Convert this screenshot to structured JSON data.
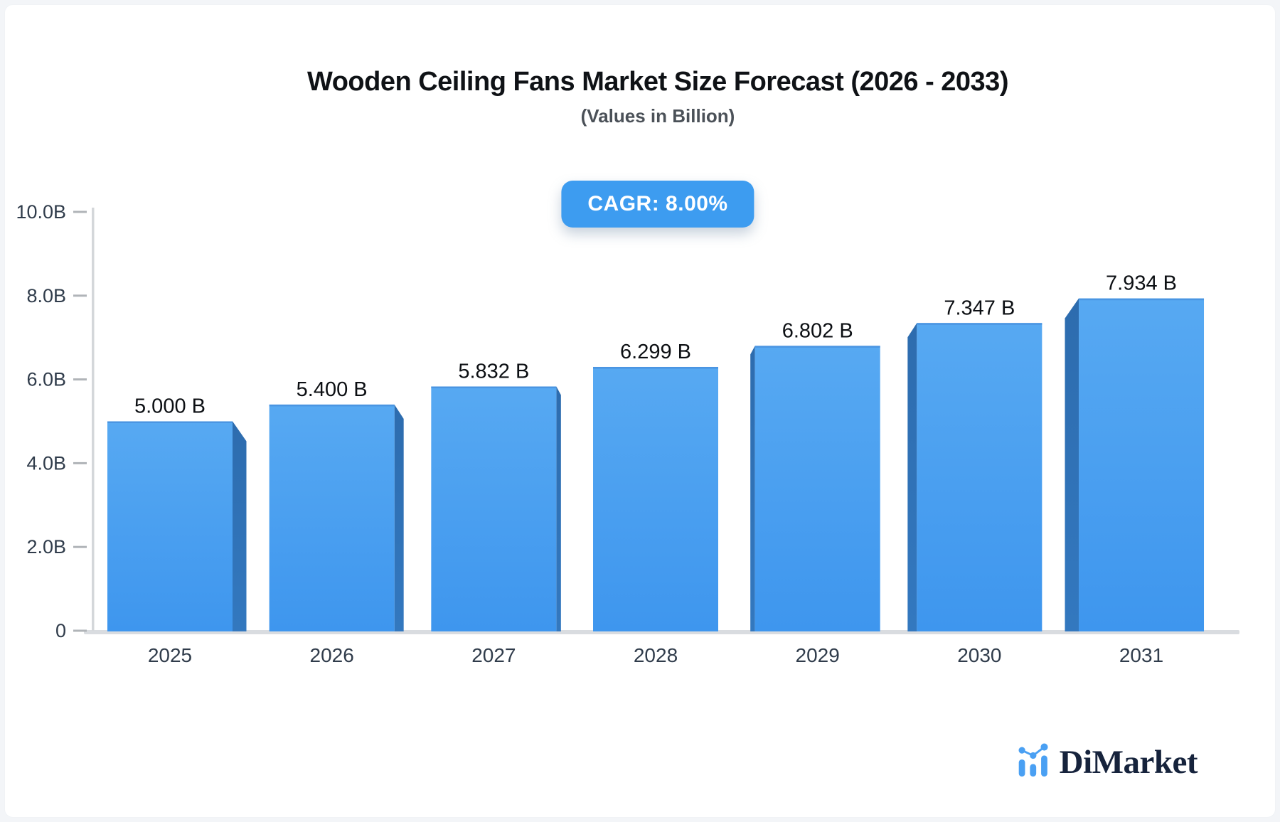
{
  "header": {
    "title": "Wooden Ceiling Fans Market Size Forecast (2026 - 2033)",
    "subtitle": "(Values in Billion)",
    "cagr_label": "CAGR: 8.00%"
  },
  "branding": {
    "name": "DiMarket",
    "logo_icon": "mini-bar-chart-icon",
    "brand_blue": "#4aa0f3",
    "brand_navy": "#16233c"
  },
  "colors": {
    "bar_top": "#57a9f2",
    "bar_bottom": "#3e96ee",
    "bar_top_edge": "#4a95e2",
    "bar_side_dark": "#2d6cae",
    "bar_side_light": "#3378bf",
    "badge_blue": "#3d9cf0",
    "axis_line": "#d4d7da",
    "baseline": "#d9dce0",
    "tick_mark": "#b0b4b8",
    "axis_label": "#303c4b",
    "value_label": "#0c0f13"
  },
  "chart_data": {
    "type": "bar",
    "title": "Wooden Ceiling Fans Market Size Forecast (2026 - 2033)",
    "subtitle": "(Values in Billion)",
    "annotation": "CAGR: 8.00%",
    "unit": "Billion",
    "categories": [
      "2025",
      "2026",
      "2027",
      "2028",
      "2029",
      "2030",
      "2031"
    ],
    "values": [
      5.0,
      5.4,
      5.832,
      6.299,
      6.802,
      7.347,
      7.934
    ],
    "value_labels": [
      "5.000 B",
      "5.400 B",
      "5.832 B",
      "6.299 B",
      "6.802 B",
      "7.347 B",
      "7.934 B"
    ],
    "xlabel": "",
    "ylabel": "",
    "ylim": [
      0,
      10
    ],
    "ytick_labels": [
      "0",
      "2.0B",
      "4.0B",
      "6.0B",
      "8.0B",
      "10.0B"
    ],
    "grid": "off",
    "legend": "none",
    "style": "3d-perspective-bars"
  }
}
